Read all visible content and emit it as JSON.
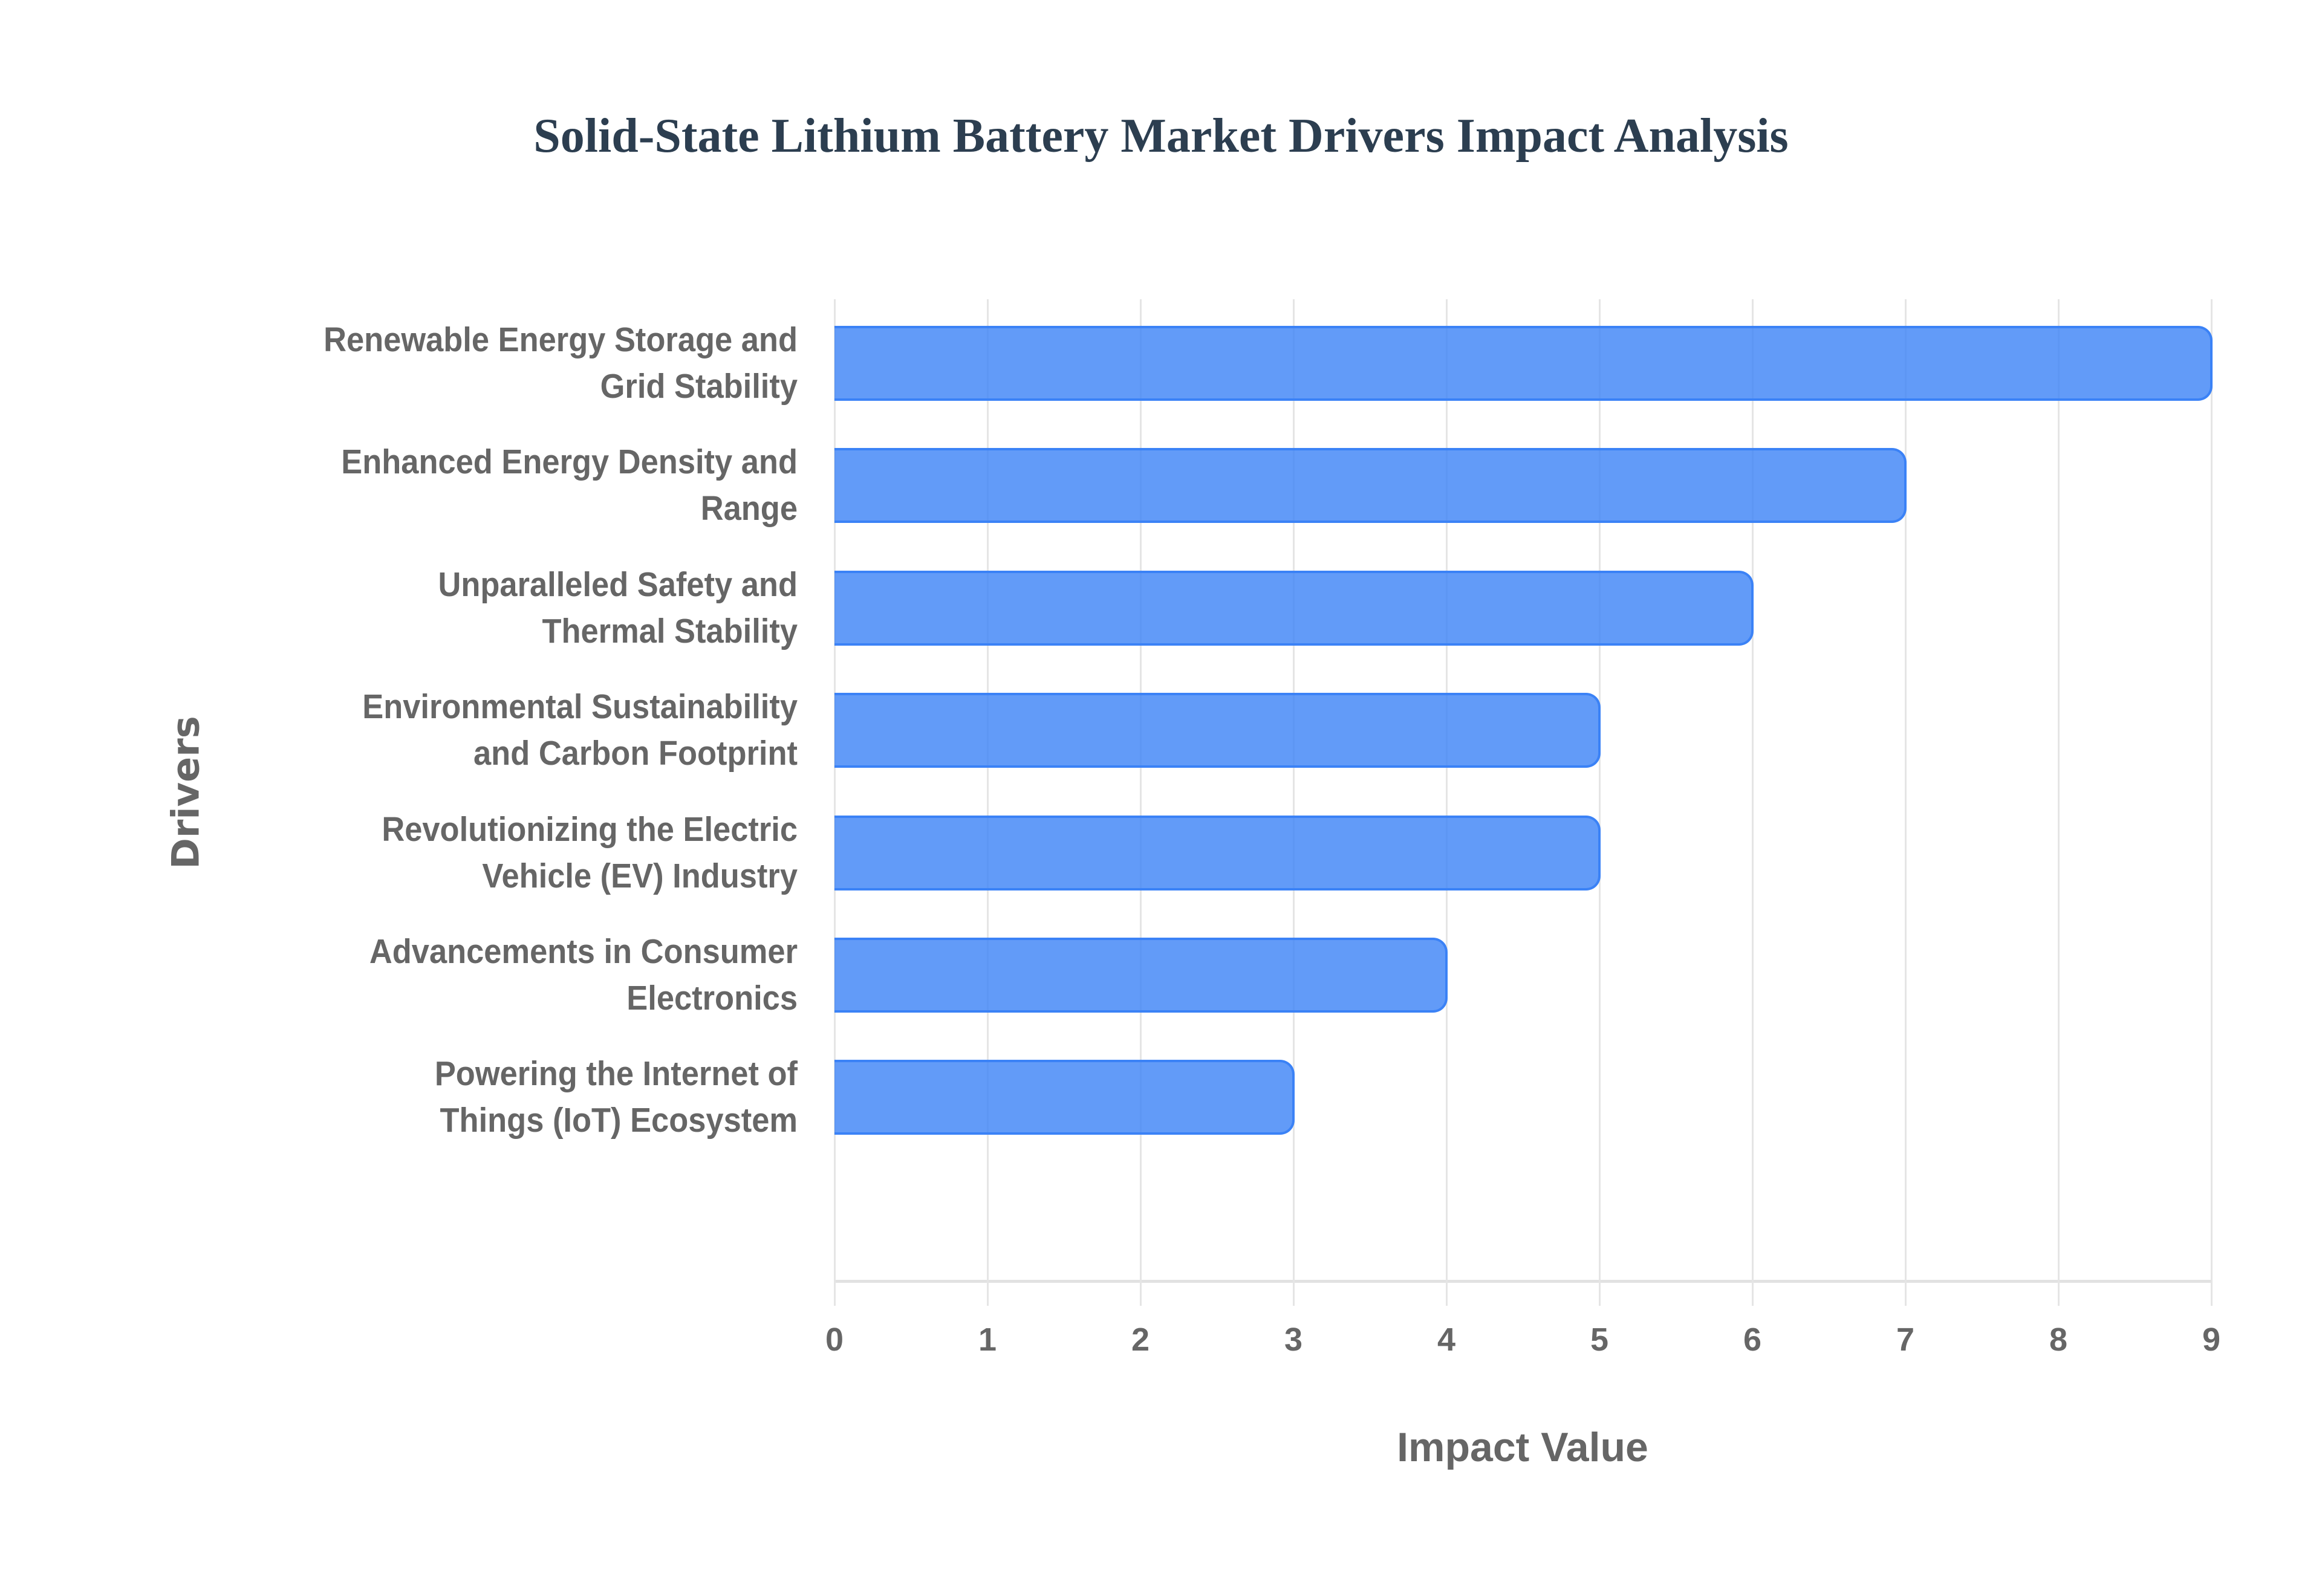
{
  "chart_data": {
    "type": "bar",
    "orientation": "horizontal",
    "title": "Solid-State Lithium Battery Market Drivers Impact Analysis",
    "xlabel": "Impact Value",
    "ylabel": "Drivers",
    "xlim": [
      0,
      9
    ],
    "xticks": [
      "0",
      "1",
      "2",
      "3",
      "4",
      "5",
      "6",
      "7",
      "8",
      "9"
    ],
    "grid": true,
    "legend": null,
    "bar_color": "#3b82f6",
    "categories": [
      [
        "Renewable Energy Storage and",
        "Grid Stability"
      ],
      [
        "Enhanced Energy Density and",
        "Range"
      ],
      [
        "Unparalleled Safety and",
        "Thermal Stability"
      ],
      [
        "Environmental Sustainability",
        "and Carbon Footprint"
      ],
      [
        "Revolutionizing the Electric",
        "Vehicle (EV) Industry"
      ],
      [
        "Advancements in Consumer",
        "Electronics"
      ],
      [
        "Powering the Internet of",
        "Things (IoT) Ecosystem"
      ]
    ],
    "category_names": [
      "Renewable Energy Storage and Grid Stability",
      "Enhanced Energy Density and Range",
      "Unparalleled Safety and Thermal Stability",
      "Environmental Sustainability and Carbon Footprint",
      "Revolutionizing the Electric Vehicle (EV) Industry",
      "Advancements in Consumer Electronics",
      "Powering the Internet of Things (IoT) Ecosystem"
    ],
    "values": [
      9,
      7,
      6,
      5,
      5,
      4,
      3
    ]
  }
}
